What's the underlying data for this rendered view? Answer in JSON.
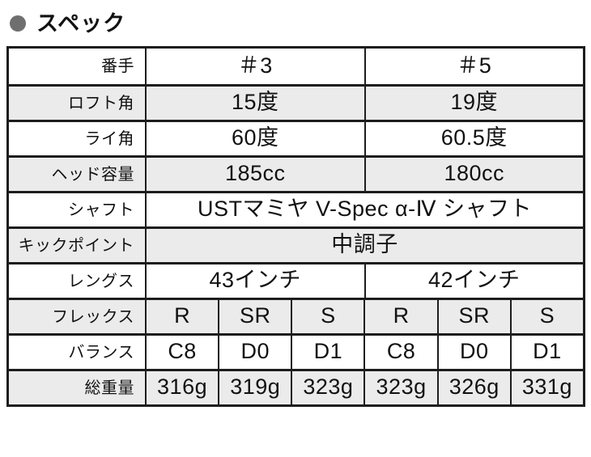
{
  "header": {
    "title": "スペック"
  },
  "colors": {
    "bullet": "#6f6f6f",
    "border": "#1d1d1d",
    "row_alt_bg": "#ebebeb",
    "row_bg": "#ffffff",
    "text": "#111111"
  },
  "table": {
    "rows": [
      {
        "label": "番手",
        "layout": "two",
        "bg": "white",
        "values": [
          "＃3",
          "＃5"
        ]
      },
      {
        "label": "ロフト角",
        "layout": "two",
        "bg": "gray",
        "values": [
          "15度",
          "19度"
        ]
      },
      {
        "label": "ライ角",
        "layout": "two",
        "bg": "white",
        "values": [
          "60度",
          "60.5度"
        ]
      },
      {
        "label": "ヘッド容量",
        "layout": "two",
        "bg": "gray",
        "values": [
          "185cc",
          "180cc"
        ]
      },
      {
        "label": "シャフト",
        "layout": "full",
        "bg": "white",
        "values": [
          "USTマミヤ V-Spec α-Ⅳ シャフト"
        ]
      },
      {
        "label": "キックポイント",
        "layout": "full",
        "bg": "gray",
        "values": [
          "中調子"
        ]
      },
      {
        "label": "レングス",
        "layout": "two",
        "bg": "white",
        "values": [
          "43インチ",
          "42インチ"
        ]
      },
      {
        "label": "フレックス",
        "layout": "six",
        "bg": "gray",
        "values": [
          "R",
          "SR",
          "S",
          "R",
          "SR",
          "S"
        ]
      },
      {
        "label": "バランス",
        "layout": "six",
        "bg": "white",
        "values": [
          "C8",
          "D0",
          "D1",
          "C8",
          "D0",
          "D1"
        ]
      },
      {
        "label": "総重量",
        "layout": "six",
        "bg": "gray",
        "values": [
          "316g",
          "319g",
          "323g",
          "323g",
          "326g",
          "331g"
        ]
      }
    ]
  }
}
